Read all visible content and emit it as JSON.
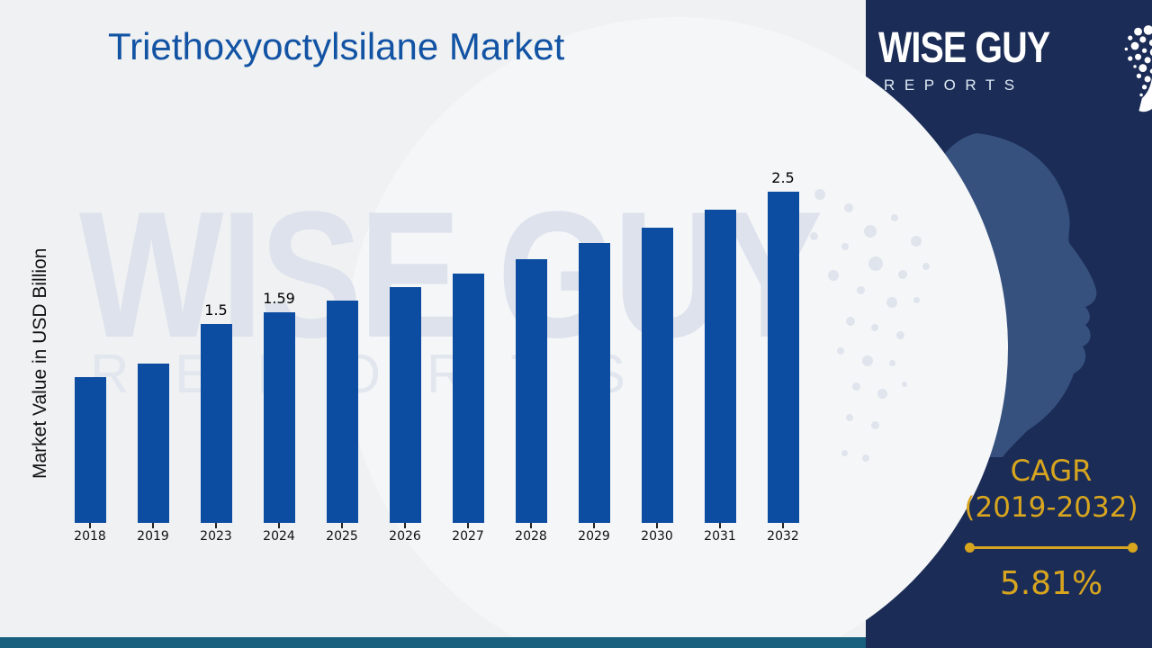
{
  "header": {
    "title": "Triethoxyoctylsilane Market"
  },
  "chart_data": {
    "type": "bar",
    "title": "Triethoxyoctylsilane Market",
    "xlabel": "",
    "ylabel": "Market Value in USD Billion",
    "unit": "USD Billion",
    "categories": [
      "2018",
      "2019",
      "2023",
      "2024",
      "2025",
      "2026",
      "2027",
      "2028",
      "2029",
      "2030",
      "2031",
      "2032"
    ],
    "values": [
      1.1,
      1.2,
      1.5,
      1.59,
      1.68,
      1.78,
      1.88,
      1.99,
      2.11,
      2.23,
      2.36,
      2.5
    ],
    "value_labels": {
      "2023": "1.5",
      "2024": "1.59",
      "2032": "2.5"
    },
    "ylim": [
      0,
      2.75
    ],
    "grid": false,
    "legend": "none",
    "bar_color": "#0c4da2"
  },
  "watermark": {
    "line1": "WISE GUY",
    "line2": "REPORTS"
  },
  "brand_panel": {
    "logo_line1": "WISE GUY",
    "logo_line2": "REPORTS",
    "logo_icon": "dotted-head-profile-icon",
    "cagr_label": "CAGR",
    "cagr_period": "(2019-2032)",
    "cagr_value": "5.81%"
  },
  "colors": {
    "bar": "#0c4da2",
    "navy_panel": "#1b2c57",
    "gold_accent": "#d8a51e",
    "teal_bar": "#19607e",
    "title_blue": "#1253a4"
  }
}
